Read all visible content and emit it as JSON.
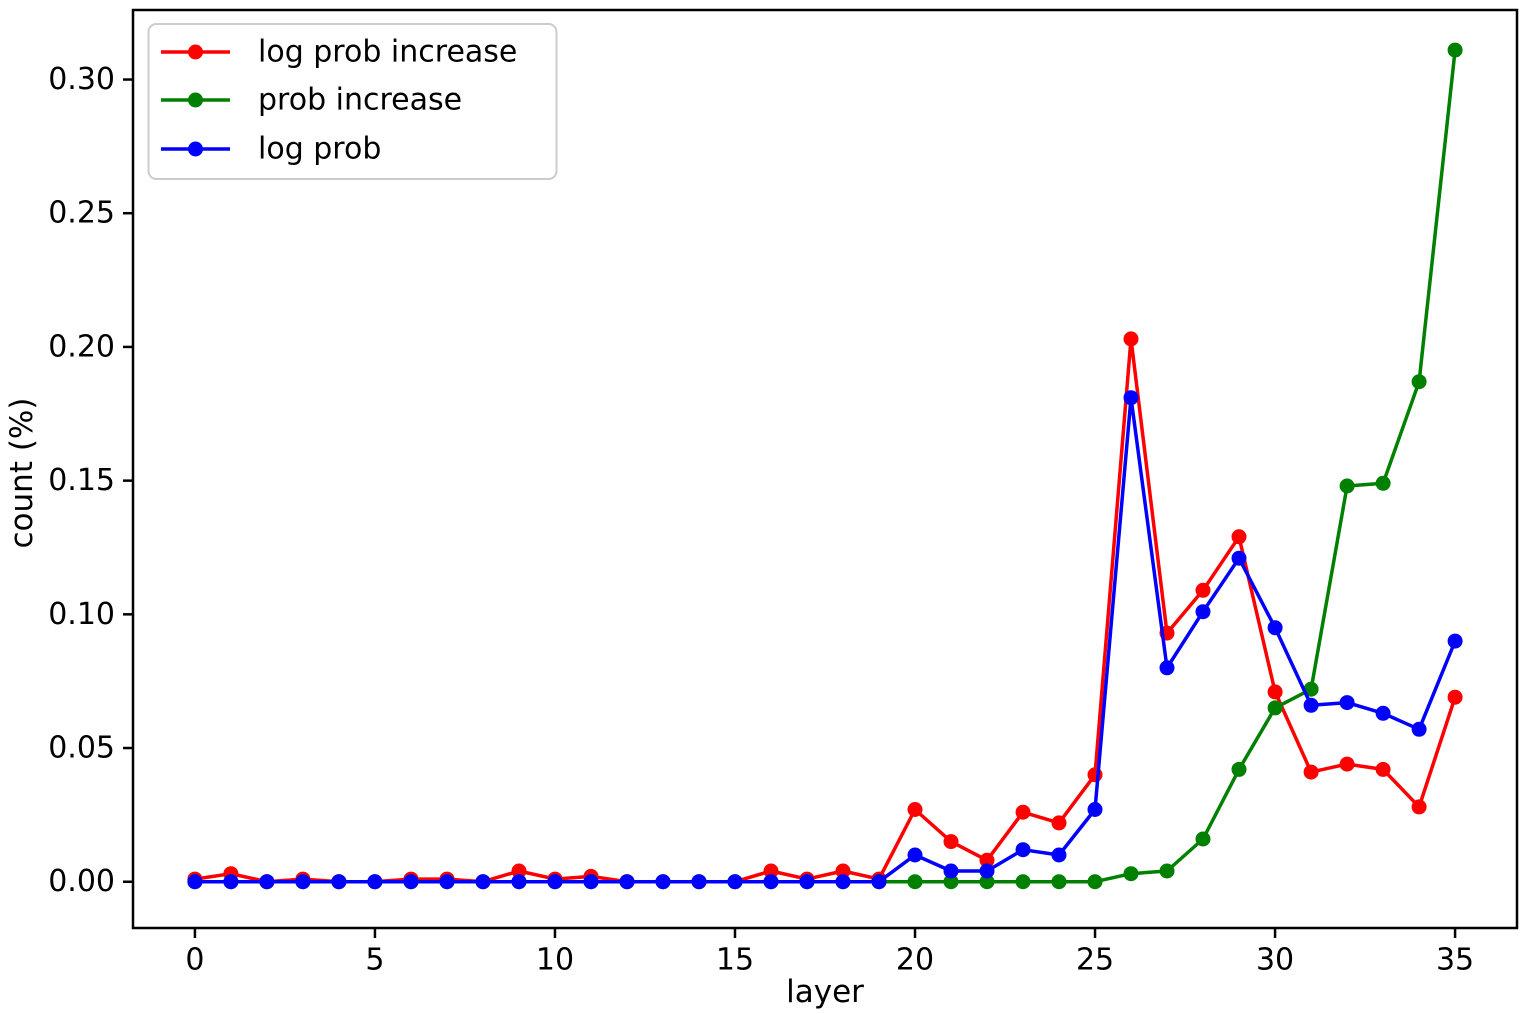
{
  "chart_data": {
    "type": "line",
    "title": "",
    "xlabel": "layer",
    "ylabel": "count (%)",
    "grid": false,
    "legend_position": "upper-left",
    "xlim": [
      -1.72,
      36.72
    ],
    "ylim": [
      -0.0173,
      0.326
    ],
    "xticks": {
      "values": [
        0,
        5,
        10,
        15,
        20,
        25,
        30,
        35
      ],
      "labels": [
        "0",
        "5",
        "10",
        "15",
        "20",
        "25",
        "30",
        "35"
      ]
    },
    "yticks": {
      "values": [
        0.0,
        0.05,
        0.1,
        0.15,
        0.2,
        0.25,
        0.3
      ],
      "labels": [
        "0.00",
        "0.05",
        "0.10",
        "0.15",
        "0.20",
        "0.25",
        "0.30"
      ]
    },
    "x": [
      0,
      1,
      2,
      3,
      4,
      5,
      6,
      7,
      8,
      9,
      10,
      11,
      12,
      13,
      14,
      15,
      16,
      17,
      18,
      19,
      20,
      21,
      22,
      23,
      24,
      25,
      26,
      27,
      28,
      29,
      30,
      31,
      32,
      33,
      34,
      35
    ],
    "series": [
      {
        "name": "log prob increase",
        "color": "#ff0000",
        "marker": "circle",
        "values": [
          0.001,
          0.003,
          0.0,
          0.001,
          0.0,
          0.0,
          0.001,
          0.001,
          0.0,
          0.004,
          0.001,
          0.002,
          0.0,
          0.0,
          0.0,
          0.0,
          0.004,
          0.001,
          0.004,
          0.001,
          0.027,
          0.015,
          0.008,
          0.026,
          0.022,
          0.04,
          0.203,
          0.093,
          0.109,
          0.129,
          0.071,
          0.041,
          0.044,
          0.042,
          0.028,
          0.069
        ]
      },
      {
        "name": "prob increase",
        "color": "#008000",
        "marker": "circle",
        "values": [
          0.0,
          0.0,
          0.0,
          0.0,
          0.0,
          0.0,
          0.0,
          0.0,
          0.0,
          0.0,
          0.0,
          0.0,
          0.0,
          0.0,
          0.0,
          0.0,
          0.0,
          0.0,
          0.0,
          0.0,
          0.0,
          0.0,
          0.0,
          0.0,
          0.0,
          0.0,
          0.003,
          0.004,
          0.016,
          0.042,
          0.065,
          0.072,
          0.148,
          0.149,
          0.187,
          0.311
        ]
      },
      {
        "name": "log prob",
        "color": "#0000ff",
        "marker": "circle",
        "values": [
          0.0,
          0.0,
          0.0,
          0.0,
          0.0,
          0.0,
          0.0,
          0.0,
          0.0,
          0.0,
          0.0,
          0.0,
          0.0,
          0.0,
          0.0,
          0.0,
          0.0,
          0.0,
          0.0,
          0.0,
          0.01,
          0.004,
          0.004,
          0.012,
          0.01,
          0.027,
          0.181,
          0.08,
          0.101,
          0.121,
          0.095,
          0.066,
          0.067,
          0.063,
          0.057,
          0.09
        ]
      }
    ]
  }
}
